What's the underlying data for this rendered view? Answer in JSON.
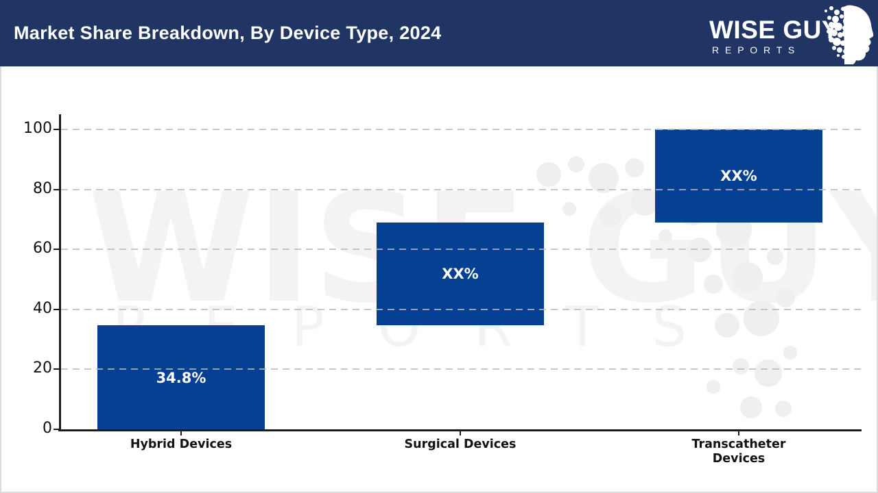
{
  "header": {
    "title": "Market Share Breakdown, By Device Type, 2024",
    "logo": {
      "brand": "WISE GUY",
      "tagline": "R E P O R T S"
    }
  },
  "watermark": {
    "brand": "WISE GUY",
    "tagline": "R E P O R T S"
  },
  "chart_data": {
    "type": "bar",
    "subtype": "floating-segment-waterfall",
    "title": "Market Share Breakdown, By Device Type, 2024",
    "categories": [
      "Hybrid Devices",
      "Surgical Devices",
      "Transcatheter Devices"
    ],
    "segments": [
      {
        "category": "Hybrid Devices",
        "start": 0,
        "end": 34.8,
        "label": "34.8%"
      },
      {
        "category": "Surgical Devices",
        "start": 34.8,
        "end": 69,
        "label": "XX%"
      },
      {
        "category": "Transcatheter Devices",
        "start": 69,
        "end": 100,
        "label": "XX%"
      }
    ],
    "yticks": [
      0,
      20,
      40,
      60,
      80,
      100
    ],
    "ylim": [
      0,
      105
    ],
    "xlabel": "",
    "ylabel": "",
    "grid": "horizontal-dashed",
    "legend": "none",
    "bar_color": "#064093",
    "bar_label_color": "#ffffff"
  },
  "colors": {
    "header_bg": "#213564",
    "bar": "#064093",
    "grid": "#bcbcc0",
    "axis": "#1a1a1a",
    "watermark": "#f3f3f6",
    "border": "#dcdcdc"
  }
}
